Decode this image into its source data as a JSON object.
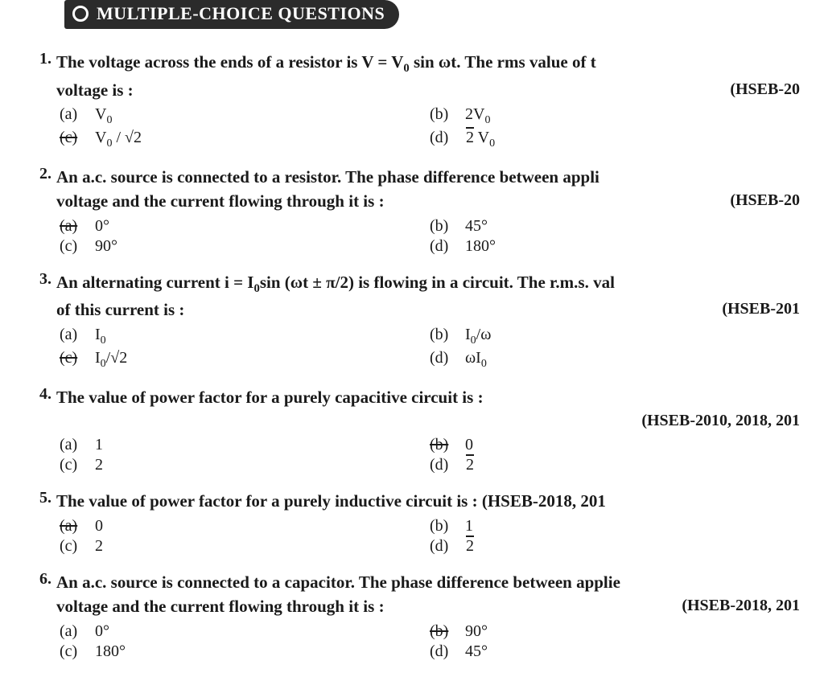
{
  "header": "MULTIPLE-CHOICE QUESTIONS",
  "questions": [
    {
      "num": "1.",
      "text_parts": [
        "The voltage across the ends of a resistor is V = V",
        "0",
        " sin ωt. The rms value of t",
        "voltage is :"
      ],
      "source": "(HSEB-20",
      "options": [
        {
          "label": "(a)",
          "value_html": "V<sub>0</sub>"
        },
        {
          "label": "(b)",
          "value_html": "2V<sub>0</sub>"
        },
        {
          "label": "(c)",
          "strike": true,
          "value_html": "V<sub>0</sub> / √2"
        },
        {
          "label": "(d)",
          "value_html": "<span class='sqrt'>2</span> V<sub>0</sub>"
        }
      ]
    },
    {
      "num": "2.",
      "text_parts": [
        "An a.c. source is connected to a resistor. The phase difference between appli",
        "voltage and the current flowing through it is :"
      ],
      "source": "(HSEB-20",
      "options": [
        {
          "label": "(a)",
          "strike": true,
          "value_html": "0°"
        },
        {
          "label": "(b)",
          "value_html": "45°"
        },
        {
          "label": "(c)",
          "value_html": "90°"
        },
        {
          "label": "(d)",
          "value_html": "180°"
        }
      ]
    },
    {
      "num": "3.",
      "text_parts": [
        "An alternating current i = I",
        "0",
        "sin (ωt ± π/2) is flowing in a circuit. The r.m.s. val",
        "of this current is :"
      ],
      "source": "(HSEB-201",
      "options": [
        {
          "label": "(a)",
          "value_html": "I<sub>0</sub>"
        },
        {
          "label": "(b)",
          "value_html": "I<sub>0</sub>/ω"
        },
        {
          "label": "(c)",
          "strike": true,
          "value_html": "I<sub>0</sub>/√2"
        },
        {
          "label": "(d)",
          "value_html": "ωI<sub>0</sub>"
        }
      ]
    },
    {
      "num": "4.",
      "text_parts": [
        "The value of power factor for a purely capacitive circuit is :"
      ],
      "source": "(HSEB-2010, 2018, 201",
      "options": [
        {
          "label": "(a)",
          "value_html": "1"
        },
        {
          "label": "(b)",
          "strike": true,
          "value_html": "0"
        },
        {
          "label": "(c)",
          "value_html": "2"
        },
        {
          "label": "(d)",
          "value_html": "<span class='sqrt'>2</span>"
        }
      ]
    },
    {
      "num": "5.",
      "text_parts": [
        "The value of power factor for a purely inductive circuit is :"
      ],
      "source_inline": "(HSEB-2018, 201",
      "options": [
        {
          "label": "(a)",
          "strike": true,
          "value_html": "0"
        },
        {
          "label": "(b)",
          "value_html": "1"
        },
        {
          "label": "(c)",
          "value_html": "2"
        },
        {
          "label": "(d)",
          "value_html": "<span class='sqrt'>2</span>"
        }
      ]
    },
    {
      "num": "6.",
      "text_parts": [
        "An a.c. source is connected to a capacitor. The phase difference between applie",
        "voltage and the current flowing through it is :"
      ],
      "source": "(HSEB-2018, 201",
      "options": [
        {
          "label": "(a)",
          "value_html": "0°"
        },
        {
          "label": "(b)",
          "strike": true,
          "value_html": "90°"
        },
        {
          "label": "(c)",
          "value_html": "180°"
        },
        {
          "label": "(d)",
          "value_html": "45°"
        }
      ]
    }
  ]
}
